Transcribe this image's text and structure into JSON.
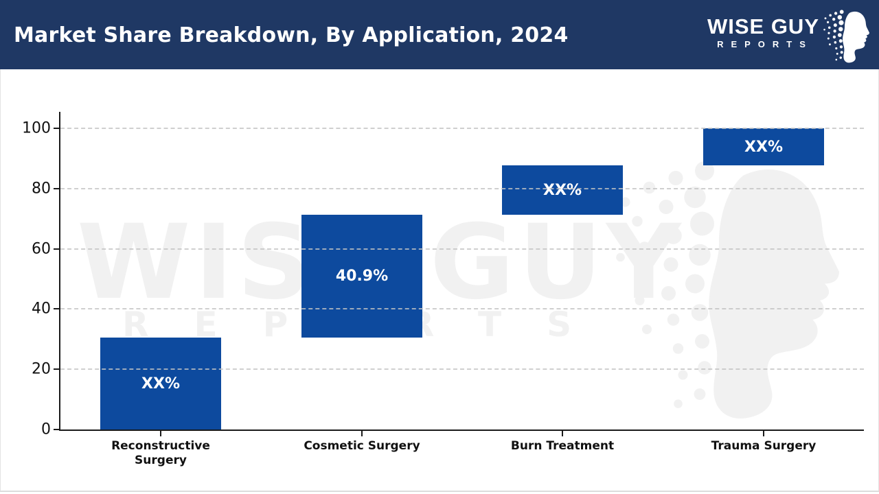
{
  "header": {
    "title": "Market Share Breakdown, By Application, 2024",
    "background_color": "#1f3864",
    "logo": {
      "name": "Wise Guy Reports",
      "line1": "WISE GUY",
      "line2": "REPORTS",
      "icon": "dotted-face-profile"
    }
  },
  "watermark": {
    "line1": "WISE GUY",
    "line2": "REPORTS",
    "icon": "dotted-face-profile"
  },
  "chart_data": {
    "type": "bar",
    "variant": "floating-waterfall",
    "title": "Market Share Breakdown, By Application, 2024",
    "categories": [
      "Reconstructive Surgery",
      "Cosmetic Surgery",
      "Burn Treatment",
      "Trauma Surgery"
    ],
    "category_label_lines": [
      [
        "Reconstructive",
        "Surgery"
      ],
      [
        "Cosmetic Surgery"
      ],
      [
        "Burn Treatment"
      ],
      [
        "Trauma Surgery"
      ]
    ],
    "series": [
      {
        "name": "Market share (%)",
        "segment_start": [
          0,
          30.5,
          71.4,
          87.7
        ],
        "segment_end": [
          30.5,
          71.4,
          87.7,
          100
        ],
        "bar_labels": [
          "XX%",
          "40.9%",
          "XX%",
          "XX%"
        ]
      }
    ],
    "xlabel": "",
    "ylabel": "",
    "ylim": [
      0,
      100
    ],
    "yticks": [
      0,
      20,
      40,
      60,
      80,
      100
    ],
    "ytick_labels": [
      "0",
      "20",
      "40",
      "60",
      "80",
      "100"
    ],
    "grid": {
      "axis": "y",
      "style": "dashed",
      "color": "#c9c9c9"
    },
    "bar_color": "#0d4a9e",
    "bar_label_color": "#ffffff",
    "legend": "none"
  }
}
